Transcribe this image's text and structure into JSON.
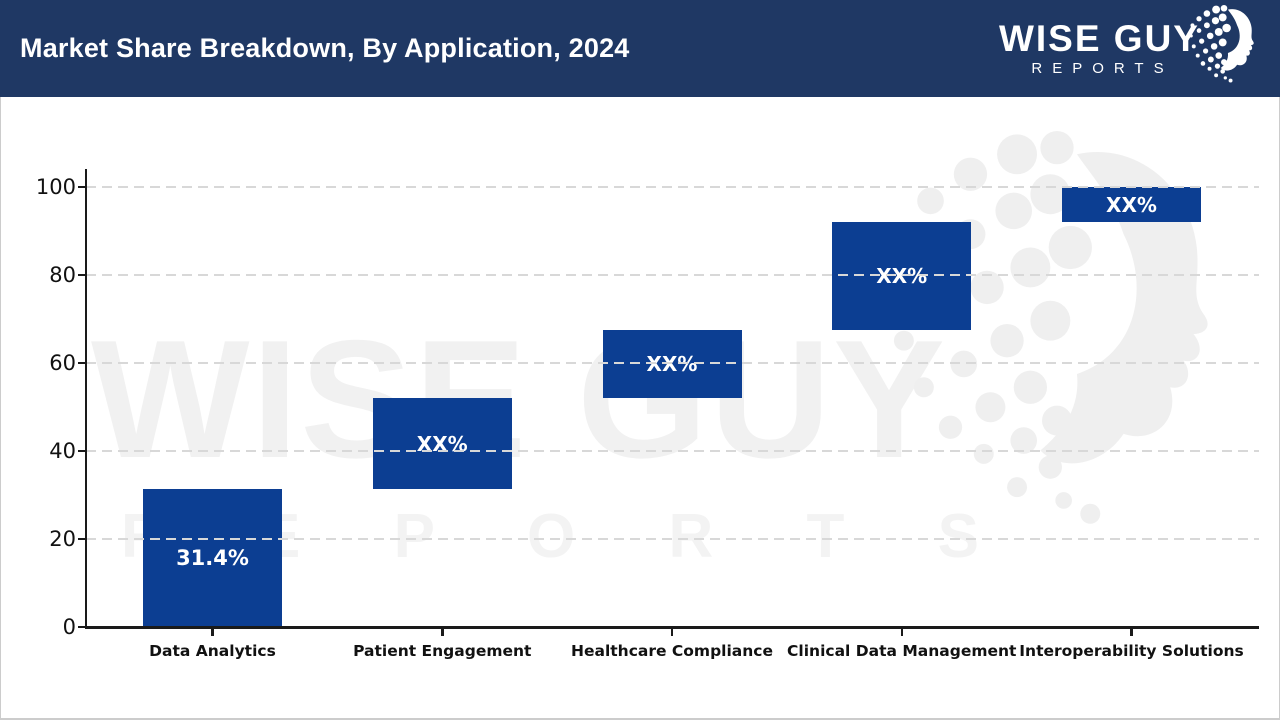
{
  "header": {
    "title": "Market Share Breakdown, By Application, 2024",
    "bg_color": "#1F3864",
    "logo": {
      "line1": "WISE GUY",
      "line2": "REPORTS"
    }
  },
  "watermark": {
    "line1": "WISE GUY",
    "line2": "REPORTS"
  },
  "chart_data": {
    "type": "bar",
    "subtype": "waterfall",
    "title": "Market Share Breakdown, By Application, 2024",
    "categories": [
      "Data Analytics",
      "Patient Engagement",
      "Healthcare Compliance",
      "Clinical Data Management",
      "Interoperability Solutions"
    ],
    "segments": [
      {
        "category": "Data Analytics",
        "start": 0,
        "end": 31.4,
        "label": "31.4%"
      },
      {
        "category": "Patient Engagement",
        "start": 31.4,
        "end": 52,
        "label": "XX%"
      },
      {
        "category": "Healthcare Compliance",
        "start": 52,
        "end": 67.6,
        "label": "XX%"
      },
      {
        "category": "Clinical Data Management",
        "start": 67.6,
        "end": 92,
        "label": "XX%"
      },
      {
        "category": "Interoperability Solutions",
        "start": 92,
        "end": 100,
        "label": "XX%"
      }
    ],
    "yticks": [
      0,
      20,
      40,
      60,
      80,
      100
    ],
    "ylim": [
      0,
      105
    ],
    "xlabel": "",
    "ylabel": "",
    "bar_color": "#0C3E92",
    "grid": "horizontal-dashed",
    "gridline_color": "#d8d8d8",
    "legend": "none"
  }
}
